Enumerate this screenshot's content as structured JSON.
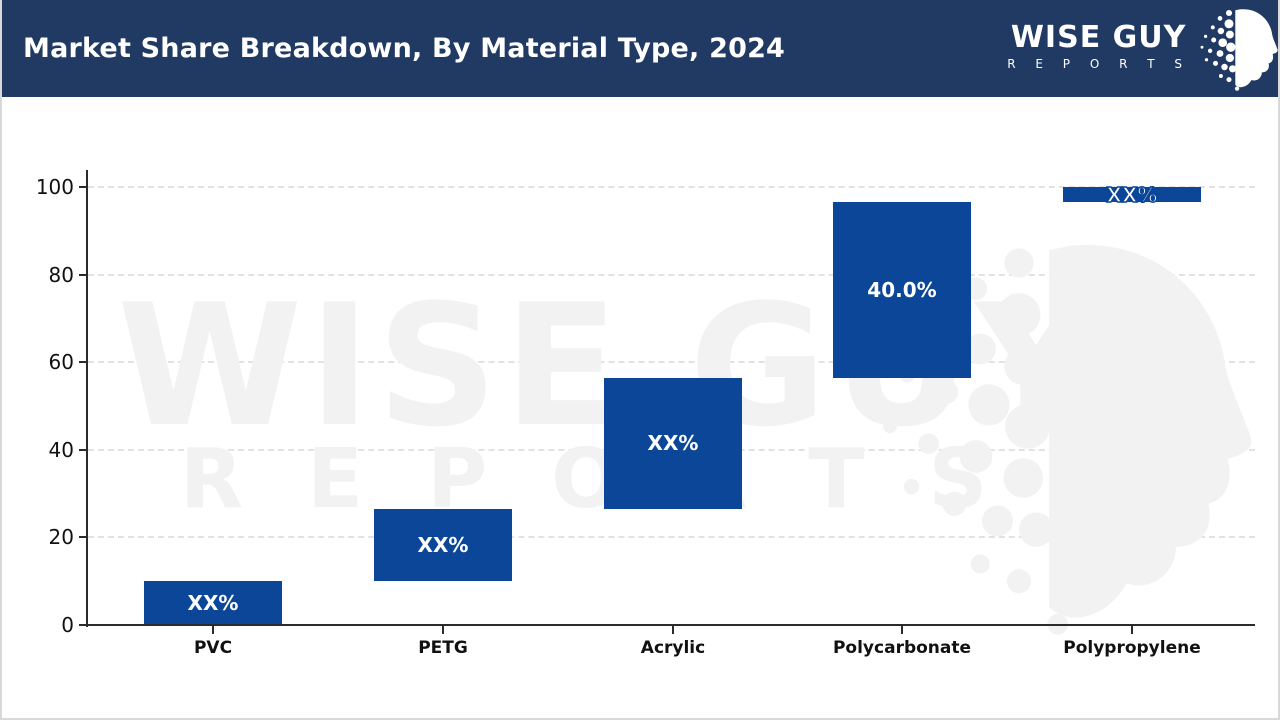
{
  "header": {
    "title": "Market Share Breakdown, By Material Type, 2024",
    "background_color": "#213a63",
    "logo": {
      "line1": "WISE GUY",
      "line2": "R E P O R T S"
    }
  },
  "watermark": {
    "line1": "WISE GUY",
    "line2": "REPORTS"
  },
  "chart_data": {
    "type": "waterfall-bar",
    "title": "Market Share Breakdown, By Material Type, 2024",
    "categories": [
      "PVC",
      "PETG",
      "Acrylic",
      "Polycarbonate",
      "Polypropylene"
    ],
    "segments": [
      {
        "category": "PVC",
        "start": 0,
        "end": 10,
        "value": 10,
        "label": "XX%"
      },
      {
        "category": "PETG",
        "start": 10,
        "end": 26.5,
        "value": 16.5,
        "label": "XX%"
      },
      {
        "category": "Acrylic",
        "start": 26.5,
        "end": 56.5,
        "value": 30,
        "label": "XX%"
      },
      {
        "category": "Polycarbonate",
        "start": 56.5,
        "end": 96.5,
        "value": 40,
        "label": "40.0%"
      },
      {
        "category": "Polypropylene",
        "start": 96.5,
        "end": 100,
        "value": 3.5,
        "label": "XX%"
      }
    ],
    "yticks": [
      0,
      20,
      40,
      60,
      80,
      100
    ],
    "ylim": [
      0,
      104
    ],
    "xlabel": "",
    "ylabel": "",
    "bar_color": "#0b4699",
    "label_color": "#ffffff",
    "grid": true,
    "gridline_style": "dashed",
    "legend": false
  }
}
